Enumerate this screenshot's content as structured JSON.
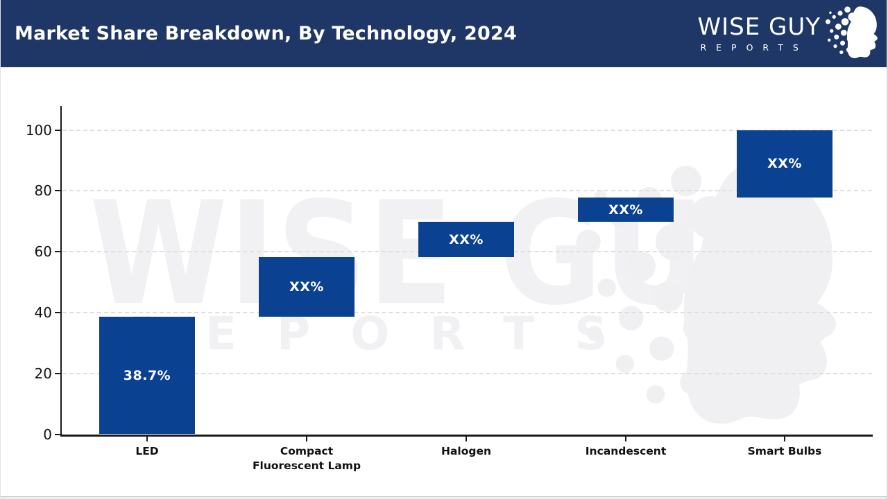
{
  "header": {
    "title": "Market Share Breakdown, By Technology, 2024",
    "bg_color": "#1f3766",
    "logo": {
      "name": "WISE GUY",
      "sub": "REPORTS"
    }
  },
  "watermark": {
    "line1": "WISE GUY",
    "line2": "REPORTS"
  },
  "chart_data": {
    "type": "bar",
    "subtype": "waterfall",
    "title": "Market Share Breakdown, By Technology, 2024",
    "categories": [
      "LED",
      "Compact\nFluorescent Lamp",
      "Halogen",
      "Incandescent",
      "Smart Bulbs"
    ],
    "series": [
      {
        "name": "Market Share",
        "segments": [
          {
            "category": "LED",
            "start": 0,
            "end": 38.7,
            "value_label": "38.7%"
          },
          {
            "category": "Compact Fluorescent Lamp",
            "start": 38.7,
            "end": 58.2,
            "value_label": "XX%"
          },
          {
            "category": "Halogen",
            "start": 58.2,
            "end": 69.8,
            "value_label": "XX%"
          },
          {
            "category": "Incandescent",
            "start": 69.8,
            "end": 77.8,
            "value_label": "XX%"
          },
          {
            "category": "Smart Bulbs",
            "start": 77.8,
            "end": 100,
            "value_label": "XX%"
          }
        ]
      }
    ],
    "xlabel": "",
    "ylabel": "",
    "y_ticks": [
      0,
      20,
      40,
      60,
      80,
      100
    ],
    "ylim": [
      0,
      107
    ],
    "grid": "horizontal-dashed",
    "legend": "none",
    "bar_color": "#0b4191",
    "bar_label_color": "#ffffff"
  }
}
